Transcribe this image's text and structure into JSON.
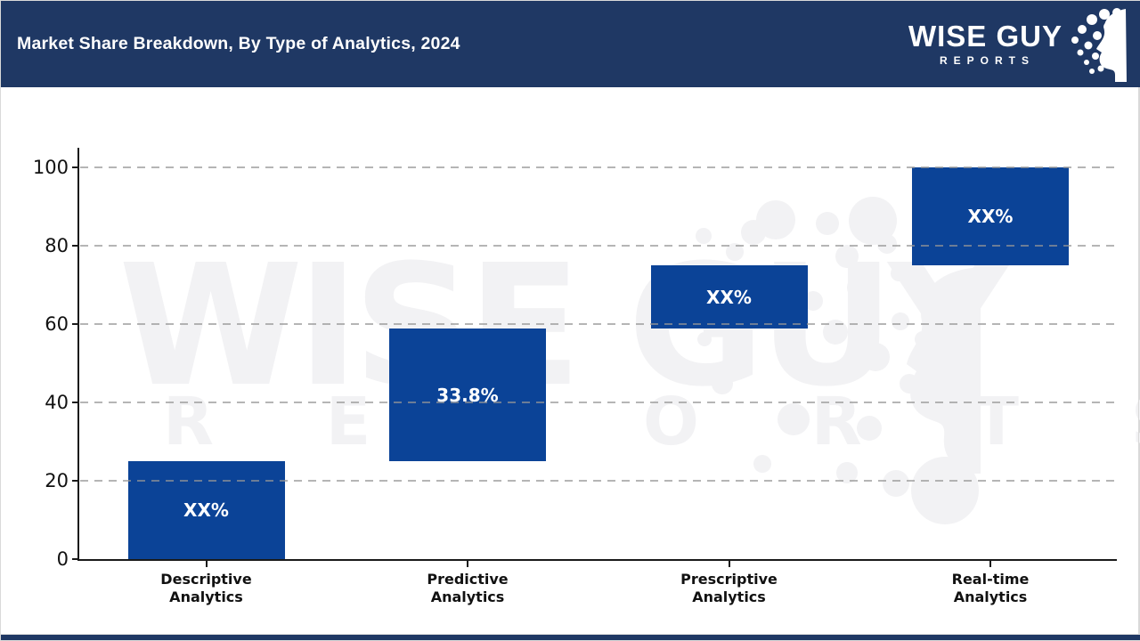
{
  "header": {
    "title": "Market Share Breakdown, By Type of Analytics, 2024",
    "logo": {
      "name": "WISE GUY",
      "subtitle": "REPORTS"
    }
  },
  "watermark": {
    "line1": "WISE GUY",
    "line2": "R E P O R T S"
  },
  "colors": {
    "header_bg": "#1f3864",
    "bar": "#0b4397",
    "grid": "#c9c9c9",
    "watermark": "#f2f2f4",
    "axis": "#1a1a1a"
  },
  "chart_data": {
    "type": "bar",
    "subtype": "floating-waterfall",
    "title": "Market Share Breakdown, By Type of Analytics, 2024",
    "categories": [
      "Descriptive Analytics",
      "Predictive Analytics",
      "Prescriptive Analytics",
      "Real-time Analytics"
    ],
    "category_lines": [
      [
        "Descriptive",
        "Analytics"
      ],
      [
        "Predictive",
        "Analytics"
      ],
      [
        "Prescriptive",
        "Analytics"
      ],
      [
        "Real-time",
        "Analytics"
      ]
    ],
    "segments": [
      {
        "category": "Descriptive Analytics",
        "start": 0,
        "end": 25,
        "label": "XX%"
      },
      {
        "category": "Predictive Analytics",
        "start": 25,
        "end": 58.8,
        "label": "33.8%"
      },
      {
        "category": "Prescriptive Analytics",
        "start": 58.8,
        "end": 75,
        "label": "XX%"
      },
      {
        "category": "Real-time Analytics",
        "start": 75,
        "end": 100,
        "label": "XX%"
      }
    ],
    "yticks": [
      0,
      20,
      40,
      60,
      80,
      100
    ],
    "ylim": [
      0,
      105
    ],
    "xlabel": "",
    "ylabel": "",
    "grid": "horizontal-dashed",
    "legend": "none",
    "bar_color": "#0b4397"
  }
}
